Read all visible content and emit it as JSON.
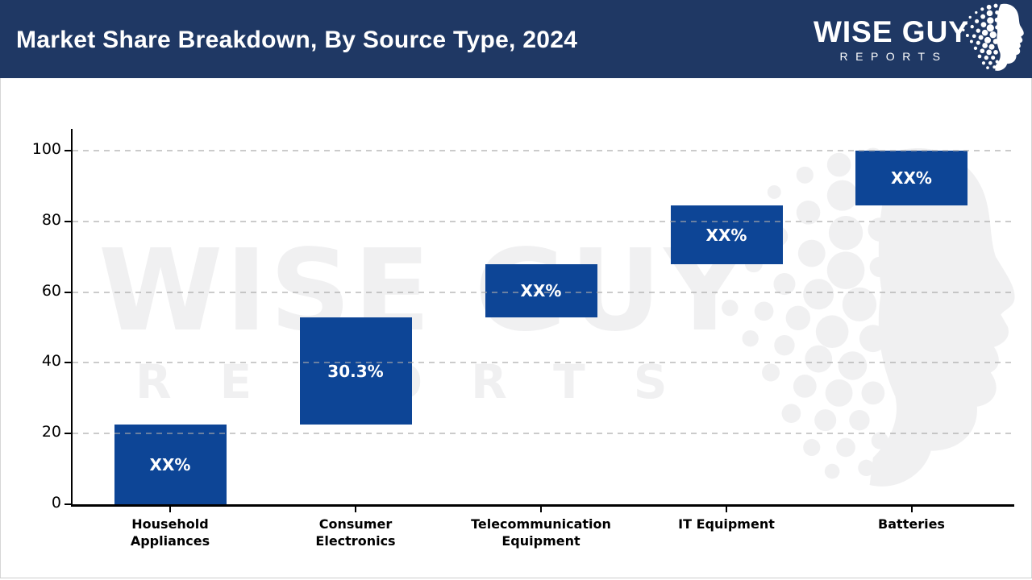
{
  "header": {
    "title": "Market Share Breakdown, By Source Type, 2024",
    "bg_color": "#1f3864",
    "logo": {
      "line1": "WISE GUY",
      "line2": "REPORTS",
      "icon": "dotted-head-profile-icon"
    }
  },
  "watermark": {
    "line1": "WISE GUY",
    "line2": "REPORTS",
    "icon": "dotted-head-profile-icon",
    "color": "#f0f0f1"
  },
  "chart_data": {
    "type": "bar",
    "variant": "waterfall",
    "title": "Market Share Breakdown, By Source Type, 2024",
    "xlabel": "",
    "ylabel": "",
    "categories": [
      "Household Appliances",
      "Consumer Electronics",
      "Telecommunication Equipment",
      "IT Equipment",
      "Batteries"
    ],
    "category_lines": [
      [
        "Household",
        "Appliances"
      ],
      [
        "Consumer",
        "Electronics"
      ],
      [
        "Telecommunication",
        "Equipment"
      ],
      [
        "IT Equipment"
      ],
      [
        "Batteries"
      ]
    ],
    "starts": [
      0,
      22.5,
      52.8,
      67.8,
      84.4
    ],
    "values": [
      22.5,
      30.3,
      15.0,
      16.6,
      15.6
    ],
    "bar_labels": [
      "XX%",
      "30.3%",
      "XX%",
      "XX%",
      "XX%"
    ],
    "yticks": [
      0,
      20,
      40,
      60,
      80,
      100
    ],
    "ylim": [
      0,
      106
    ],
    "grid": "horizontal-dashed",
    "legend": false,
    "bar_color": "#0d4596",
    "bar_label_color": "#ffffff",
    "axis_color": "#000000",
    "grid_color": "#d3d3d3"
  }
}
